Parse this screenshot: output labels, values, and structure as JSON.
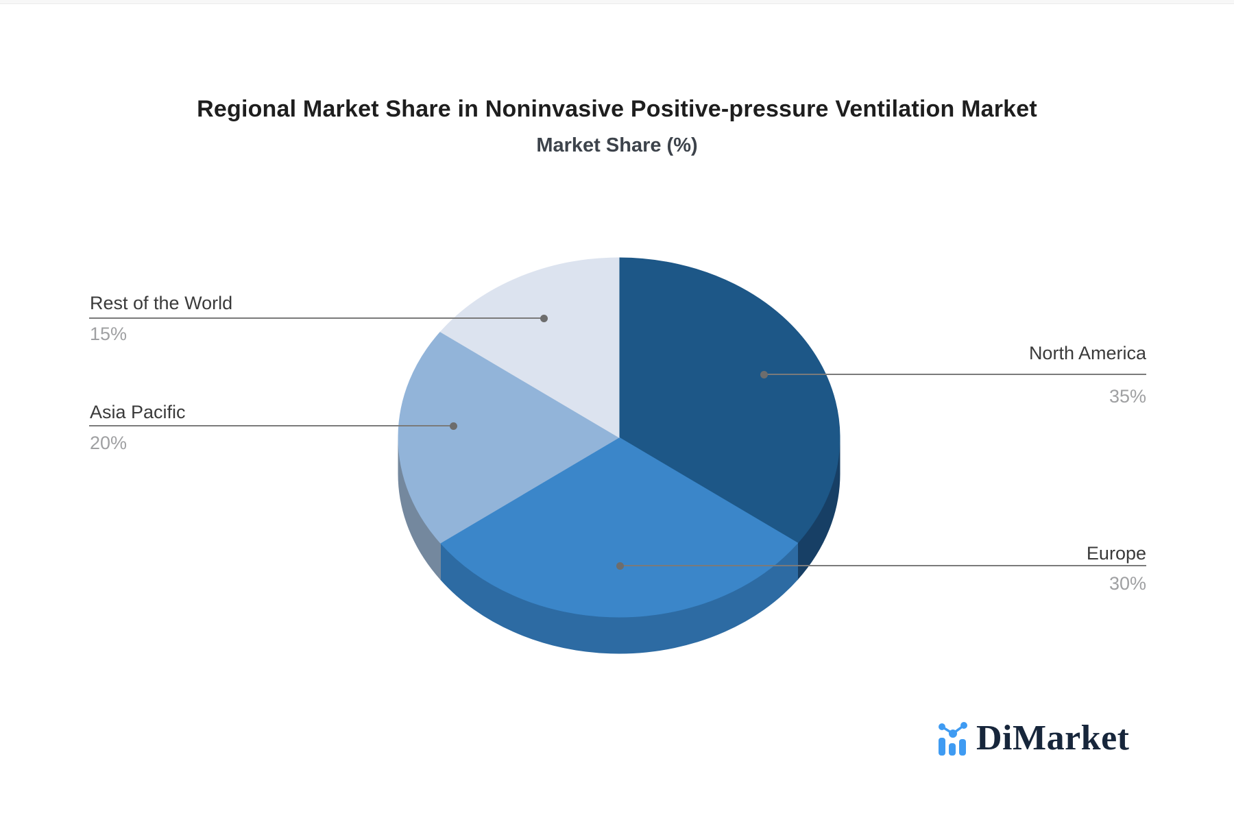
{
  "chart_data": {
    "type": "pie",
    "style": "3d",
    "title": "Regional Market Share in Noninvasive Positive-pressure Ventilation Market",
    "subtitle": "Market Share (%)",
    "unit": "%",
    "start_angle_deg": 0,
    "direction": "clockwise",
    "legend_position": "callout-labels",
    "slices": [
      {
        "label": "North America",
        "value": 35,
        "display": "35%",
        "color": "#1d5787",
        "side_color": "#173f65"
      },
      {
        "label": "Europe",
        "value": 30,
        "display": "30%",
        "color": "#3b86c9",
        "side_color": "#2d6ba3"
      },
      {
        "label": "Asia Pacific",
        "value": 20,
        "display": "20%",
        "color": "#92b4d9",
        "side_color": "#74889e"
      },
      {
        "label": "Rest of the World",
        "value": 15,
        "display": "15%",
        "color": "#dce3ef",
        "side_color": "#b9c4d6"
      }
    ]
  },
  "style": {
    "callout_line_color": "#7a7a7a",
    "callout_dot_color": "#6d6d6d",
    "label_color": "#3a3a3a",
    "percent_color": "#9fa0a2",
    "title_color": "#1e1e1e",
    "subtitle_color": "#3d434b"
  },
  "branding": {
    "logo_text": "DiMarket",
    "logo_icon": "bar-chart-trend-icon",
    "logo_text_color": "#17263b",
    "logo_icon_color": "#3f9bf2"
  }
}
